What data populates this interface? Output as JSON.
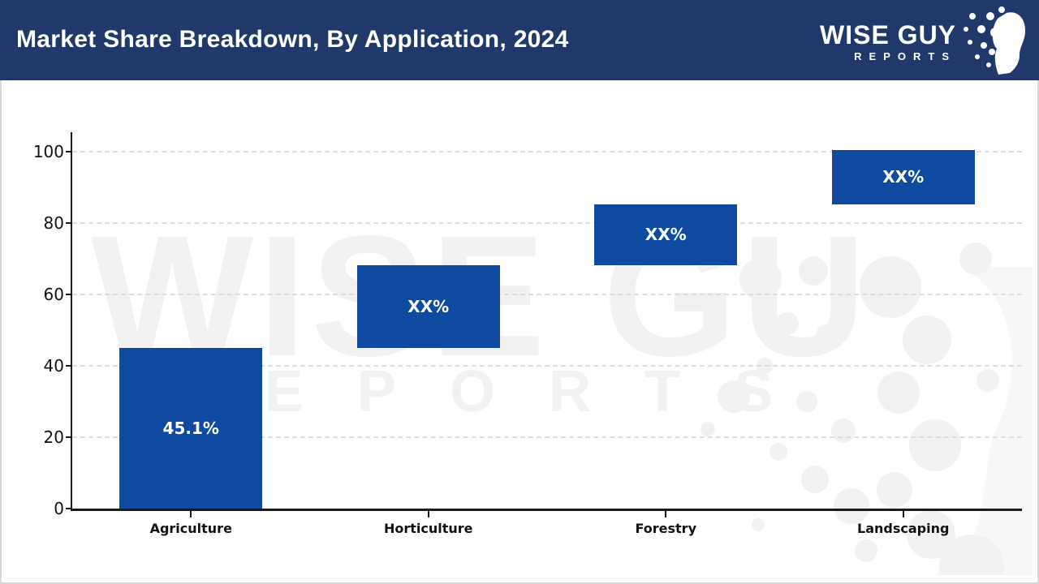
{
  "header": {
    "title": "Market Share Breakdown, By Application, 2024",
    "logo": {
      "primary": "WISE GUY",
      "secondary": "REPORTS"
    }
  },
  "watermark": {
    "large_text": "WISE GU",
    "small_text": "REPORTS"
  },
  "colors": {
    "header_bg": "#20386a",
    "bar": "#0d4aa0",
    "bar_label": "#ffffff",
    "grid": "#dcdcdc",
    "axis": "#1a1a1a",
    "watermark": "#f1f1f1",
    "card_border": "#d9d9d9"
  },
  "chart_data": {
    "type": "bar",
    "subtype": "waterfall",
    "title": "Market Share Breakdown, By Application, 2024",
    "categories": [
      "Agriculture",
      "Horticulture",
      "Forestry",
      "Landscaping"
    ],
    "segments": [
      {
        "category": "Agriculture",
        "start": 0,
        "end": 45.1,
        "label": "45.1%"
      },
      {
        "category": "Horticulture",
        "start": 45.1,
        "end": 68.2,
        "label": "XX%"
      },
      {
        "category": "Forestry",
        "start": 68.2,
        "end": 85.3,
        "label": "XX%"
      },
      {
        "category": "Landscaping",
        "start": 85.3,
        "end": 100.4,
        "label": "XX%"
      }
    ],
    "values_visible": [
      "45.1%",
      "XX%",
      "XX%",
      "XX%"
    ],
    "xlabel": "",
    "ylabel": "",
    "ylim": [
      0,
      105.5
    ],
    "yticks": [
      0,
      20,
      40,
      60,
      80,
      100
    ],
    "grid": "horizontal-dashed",
    "legend": "none"
  }
}
